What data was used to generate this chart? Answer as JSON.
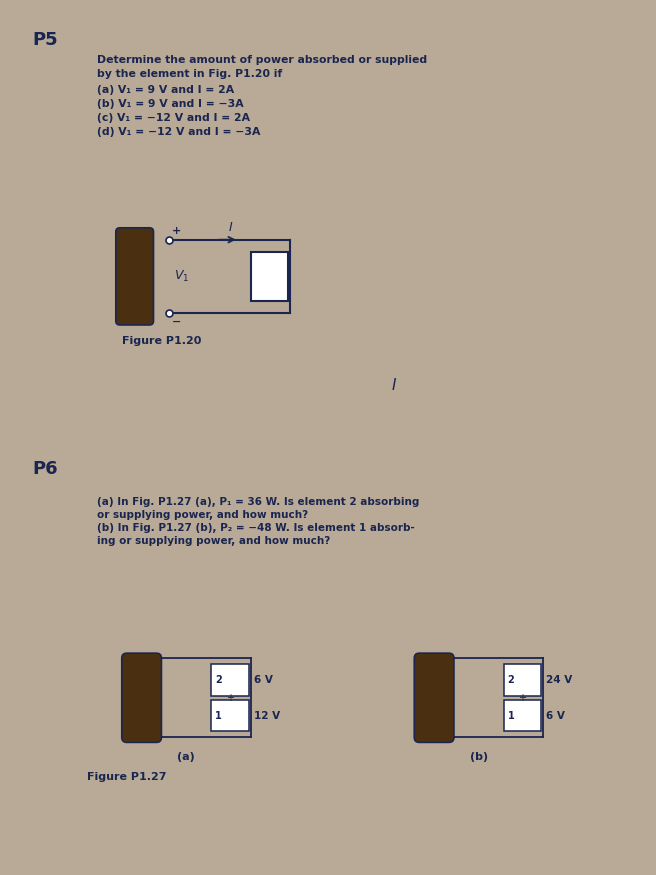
{
  "background_color": "#b8aa96",
  "text_color": "#1a2550",
  "circuit_color": "#1a2550",
  "element_fill": "#4a3010",
  "box_fill": "#ffffff",
  "p5_label": "P5",
  "p6_label": "P6",
  "problem5_title_line1": "Determine the amount of power absorbed or supplied",
  "problem5_title_line2": "by the element in Fig. P1.20 if",
  "problem5_parts": [
    "(a) V₁ = 9 V and I = 2A",
    "(b) V₁ = 9 V and I = −3A",
    "(c) V₁ = −12 V and I = 2A",
    "(d) V₁ = −12 V and I = −3A"
  ],
  "figure_p120_label": "Figure P1.20",
  "figure_p127_label": "Figure P1.27",
  "problem6_text": [
    "(a) In Fig. P1.27 (a), P₁ = 36 W. Is element 2 absorbing",
    "or supplying power, and how much?",
    "(b) In Fig. P1.27 (b), P₂ = −48 W. Is element 1 absorb-",
    "ing or supplying power, and how much?"
  ],
  "circuit_a_val1": "12 V",
  "circuit_a_val2": "6 V",
  "circuit_b_val1": "6 V",
  "circuit_b_val2": "24 V",
  "label_a": "(a)",
  "label_b": "(b)"
}
